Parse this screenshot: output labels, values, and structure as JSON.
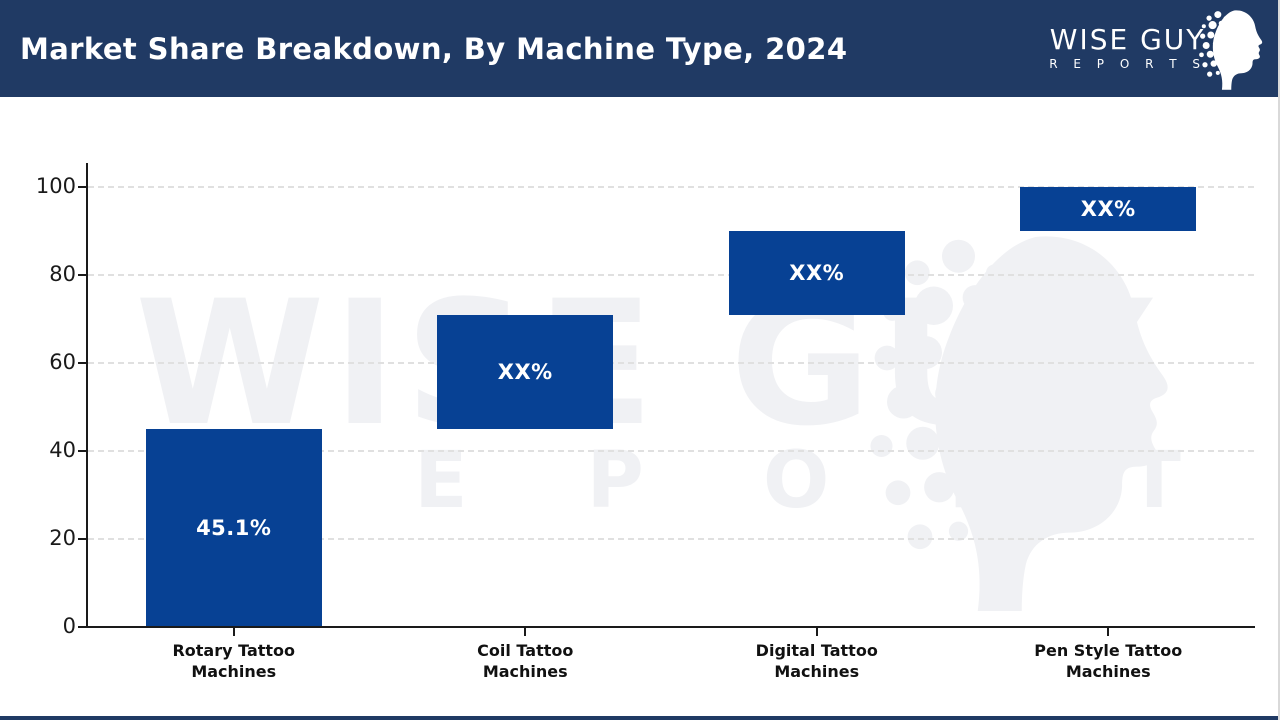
{
  "header": {
    "title": "Market Share Breakdown, By Machine Type, 2024",
    "bg_color": "#203a64",
    "logo": {
      "line1": "WISE GUY",
      "line2": "R E P O R T S"
    }
  },
  "watermark": {
    "line1": "WISE GUY",
    "line2": "R E P O R T S"
  },
  "chart_data": {
    "type": "bar",
    "variant": "waterfall",
    "title": "Market Share Breakdown, By Machine Type, 2024",
    "categories": [
      [
        "Rotary Tattoo",
        "Machines"
      ],
      [
        "Coil Tattoo",
        "Machines"
      ],
      [
        "Digital Tattoo",
        "Machines"
      ],
      [
        "Pen Style Tattoo",
        "Machines"
      ]
    ],
    "segments": [
      {
        "category": "Rotary Tattoo Machines",
        "start": 0,
        "end": 45.1,
        "label": "45.1%"
      },
      {
        "category": "Coil Tattoo Machines",
        "start": 45.1,
        "end": 71,
        "label": "XX%"
      },
      {
        "category": "Digital Tattoo Machines",
        "start": 71,
        "end": 90,
        "label": "XX%"
      },
      {
        "category": "Pen Style Tattoo Machines",
        "start": 90,
        "end": 100,
        "label": "XX%"
      }
    ],
    "xlabel": "",
    "ylabel": "",
    "ylim": [
      0,
      100
    ],
    "yticks": [
      0,
      20,
      40,
      60,
      80,
      100
    ],
    "grid": "horizontal-dashed",
    "legend": "none",
    "bar_color": "#074194",
    "bar_label_color": "#ffffff"
  }
}
